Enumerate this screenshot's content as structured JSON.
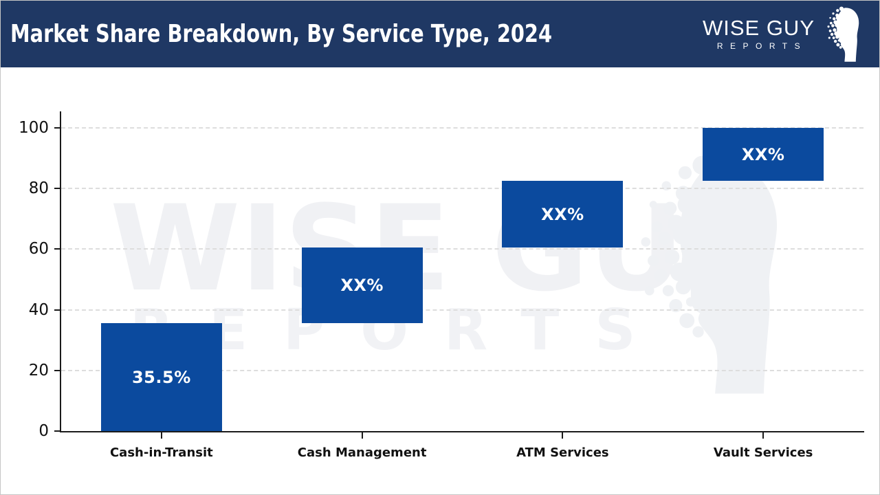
{
  "header": {
    "title": "Market Share Breakdown, By Service Type, 2024",
    "logo": {
      "name": "WISE GUY",
      "sub": "REPORTS"
    }
  },
  "watermark": {
    "name": "WISE GUY",
    "sub": "REPORTS"
  },
  "chart_data": {
    "type": "bar",
    "variant": "waterfall",
    "title": "Market Share Breakdown, By Service Type, 2024",
    "categories": [
      "Cash-in-Transit",
      "Cash Management",
      "ATM Services",
      "Vault Services"
    ],
    "segments": [
      {
        "category": "Cash-in-Transit",
        "start": 0,
        "end": 35.5,
        "label": "35.5%"
      },
      {
        "category": "Cash Management",
        "start": 35.5,
        "end": 60.5,
        "label": "XX%"
      },
      {
        "category": "ATM Services",
        "start": 60.5,
        "end": 82.5,
        "label": "XX%"
      },
      {
        "category": "Vault Services",
        "start": 82.5,
        "end": 100,
        "label": "XX%"
      }
    ],
    "yticks": [
      0,
      20,
      40,
      60,
      80,
      100
    ],
    "ylim": [
      0,
      105
    ],
    "xlabel": "",
    "ylabel": "",
    "grid": "horizontal-dashed",
    "legend": "none",
    "bar_color": "#0b4a9e",
    "bar_label_color": "#ffffff"
  },
  "colors": {
    "header_bg": "#1f3864",
    "bar": "#0b4a9e",
    "grid": "#dddddd",
    "axis": "#1a1a1a",
    "watermark": "#f0f1f4",
    "page_border": "#c6c6c6"
  }
}
